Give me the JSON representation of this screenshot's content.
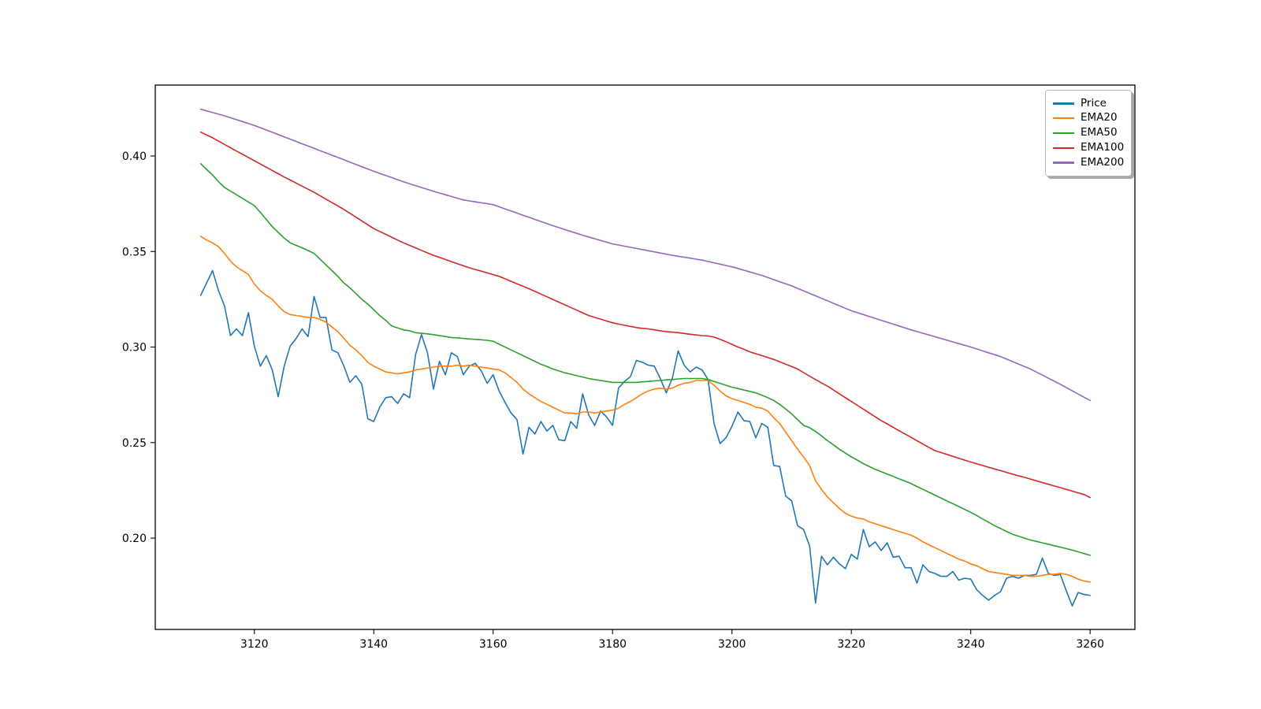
{
  "figure": {
    "background": "#ffffff"
  },
  "chart_data": {
    "type": "line",
    "title": "",
    "xlabel": "",
    "ylabel": "",
    "grid": false,
    "legend_position": "upper right",
    "xlim": [
      3103.4,
      3267.5
    ],
    "ylim": [
      0.1522,
      0.4371
    ],
    "xticks": {
      "values": [
        3120,
        3140,
        3160,
        3180,
        3200,
        3220,
        3240,
        3260
      ],
      "labels": [
        "3120",
        "3140",
        "3160",
        "3180",
        "3200",
        "3220",
        "3240",
        "3260"
      ]
    },
    "yticks": {
      "values": [
        0.2,
        0.25,
        0.3,
        0.35,
        0.4
      ],
      "labels": [
        "0.20",
        "0.25",
        "0.30",
        "0.35",
        "0.40"
      ]
    },
    "x": [
      3111,
      3112,
      3113,
      3114,
      3115,
      3116,
      3117,
      3118,
      3119,
      3120,
      3121,
      3122,
      3123,
      3124,
      3125,
      3126,
      3127,
      3128,
      3129,
      3130,
      3131,
      3132,
      3133,
      3134,
      3135,
      3136,
      3137,
      3138,
      3139,
      3140,
      3141,
      3142,
      3143,
      3144,
      3145,
      3146,
      3147,
      3148,
      3149,
      3150,
      3151,
      3152,
      3153,
      3154,
      3155,
      3156,
      3157,
      3158,
      3159,
      3160,
      3161,
      3162,
      3163,
      3164,
      3165,
      3166,
      3167,
      3168,
      3169,
      3170,
      3171,
      3172,
      3173,
      3174,
      3175,
      3176,
      3177,
      3178,
      3179,
      3180,
      3181,
      3182,
      3183,
      3184,
      3185,
      3186,
      3187,
      3188,
      3189,
      3190,
      3191,
      3192,
      3193,
      3194,
      3195,
      3196,
      3197,
      3198,
      3199,
      3200,
      3201,
      3202,
      3203,
      3204,
      3205,
      3206,
      3207,
      3208,
      3209,
      3210,
      3211,
      3212,
      3213,
      3214,
      3215,
      3216,
      3217,
      3218,
      3219,
      3220,
      3221,
      3222,
      3223,
      3224,
      3225,
      3226,
      3227,
      3228,
      3229,
      3230,
      3231,
      3232,
      3233,
      3234,
      3235,
      3236,
      3237,
      3238,
      3239,
      3240,
      3241,
      3242,
      3243,
      3244,
      3245,
      3246,
      3247,
      3248,
      3249,
      3250,
      3251,
      3252,
      3253,
      3254,
      3255,
      3256,
      3257,
      3258,
      3259,
      3260
    ],
    "series": [
      {
        "name": "Price",
        "color": "#1f77b4",
        "values": [
          0.327,
          0.3335,
          0.34,
          0.3295,
          0.3215,
          0.306,
          0.3095,
          0.306,
          0.318,
          0.3005,
          0.29,
          0.2955,
          0.288,
          0.274,
          0.29,
          0.3005,
          0.3045,
          0.3095,
          0.3055,
          0.3265,
          0.3155,
          0.3155,
          0.2985,
          0.297,
          0.29,
          0.2815,
          0.285,
          0.2805,
          0.2625,
          0.261,
          0.2685,
          0.2735,
          0.274,
          0.2705,
          0.2755,
          0.2735,
          0.296,
          0.3065,
          0.297,
          0.278,
          0.2925,
          0.2855,
          0.297,
          0.295,
          0.2855,
          0.29,
          0.2915,
          0.2875,
          0.281,
          0.2855,
          0.277,
          0.271,
          0.2655,
          0.262,
          0.244,
          0.258,
          0.2545,
          0.261,
          0.256,
          0.259,
          0.2515,
          0.251,
          0.261,
          0.2575,
          0.2755,
          0.2645,
          0.259,
          0.2665,
          0.2635,
          0.259,
          0.2785,
          0.282,
          0.2845,
          0.293,
          0.292,
          0.2905,
          0.29,
          0.2835,
          0.276,
          0.2835,
          0.298,
          0.2905,
          0.287,
          0.2895,
          0.288,
          0.283,
          0.26,
          0.2495,
          0.2525,
          0.2585,
          0.266,
          0.2615,
          0.261,
          0.2525,
          0.26,
          0.258,
          0.238,
          0.2375,
          0.222,
          0.2195,
          0.2065,
          0.2045,
          0.196,
          0.166,
          0.1905,
          0.186,
          0.19,
          0.1865,
          0.184,
          0.1915,
          0.189,
          0.2045,
          0.1955,
          0.198,
          0.1935,
          0.1975,
          0.19,
          0.1905,
          0.1845,
          0.1845,
          0.1765,
          0.186,
          0.1825,
          0.1815,
          0.18,
          0.18,
          0.1825,
          0.178,
          0.179,
          0.1785,
          0.173,
          0.17,
          0.1675,
          0.17,
          0.172,
          0.179,
          0.18,
          0.179,
          0.1805,
          0.1805,
          0.181,
          0.1895,
          0.1815,
          0.1805,
          0.181,
          0.1725,
          0.1645,
          0.1715,
          0.1705,
          0.17
        ]
      },
      {
        "name": "EMA20",
        "color": "#ff7f0e",
        "values": [
          0.358,
          0.356,
          0.3545,
          0.3525,
          0.349,
          0.345,
          0.342,
          0.34,
          0.338,
          0.333,
          0.3295,
          0.327,
          0.325,
          0.3215,
          0.3185,
          0.317,
          0.3165,
          0.316,
          0.3155,
          0.3155,
          0.3145,
          0.313,
          0.3105,
          0.308,
          0.3045,
          0.301,
          0.2985,
          0.2955,
          0.292,
          0.29,
          0.2885,
          0.287,
          0.2865,
          0.286,
          0.2865,
          0.287,
          0.288,
          0.2885,
          0.289,
          0.2895,
          0.29,
          0.29,
          0.29,
          0.2905,
          0.29,
          0.2905,
          0.29,
          0.2895,
          0.289,
          0.2885,
          0.288,
          0.2865,
          0.284,
          0.2815,
          0.278,
          0.2755,
          0.2735,
          0.2715,
          0.27,
          0.2685,
          0.267,
          0.2655,
          0.2655,
          0.265,
          0.266,
          0.266,
          0.2655,
          0.266,
          0.2665,
          0.267,
          0.268,
          0.27,
          0.2715,
          0.2735,
          0.2755,
          0.277,
          0.278,
          0.2785,
          0.278,
          0.2785,
          0.28,
          0.281,
          0.2815,
          0.2825,
          0.2825,
          0.2825,
          0.28,
          0.277,
          0.2745,
          0.273,
          0.272,
          0.271,
          0.27,
          0.2685,
          0.268,
          0.2665,
          0.263,
          0.26,
          0.2555,
          0.251,
          0.2465,
          0.2425,
          0.238,
          0.23,
          0.2255,
          0.2215,
          0.2185,
          0.2155,
          0.213,
          0.2115,
          0.2105,
          0.21,
          0.2085,
          0.2075,
          0.2065,
          0.2055,
          0.2045,
          0.2035,
          0.2025,
          0.2015,
          0.2,
          0.198,
          0.1965,
          0.195,
          0.1935,
          0.192,
          0.1905,
          0.189,
          0.188,
          0.1865,
          0.1855,
          0.184,
          0.1825,
          0.182,
          0.1815,
          0.181,
          0.1805,
          0.1805,
          0.1805,
          0.18,
          0.18,
          0.1805,
          0.181,
          0.181,
          0.1815,
          0.181,
          0.18,
          0.1785,
          0.1775,
          0.177
        ]
      },
      {
        "name": "EMA50",
        "color": "#2ca02c",
        "values": [
          0.396,
          0.393,
          0.39,
          0.3865,
          0.3835,
          0.3816,
          0.3797,
          0.3778,
          0.3759,
          0.374,
          0.3705,
          0.3668,
          0.363,
          0.36,
          0.357,
          0.3545,
          0.3532,
          0.3519,
          0.3505,
          0.349,
          0.346,
          0.343,
          0.34,
          0.337,
          0.3335,
          0.331,
          0.328,
          0.325,
          0.3225,
          0.3195,
          0.3165,
          0.314,
          0.311,
          0.31,
          0.309,
          0.3085,
          0.3075,
          0.3072,
          0.3069,
          0.3065,
          0.306,
          0.3055,
          0.305,
          0.3048,
          0.3045,
          0.3042,
          0.304,
          0.3038,
          0.3035,
          0.303,
          0.3015,
          0.3,
          0.2985,
          0.297,
          0.2955,
          0.294,
          0.2925,
          0.291,
          0.2898,
          0.2885,
          0.2875,
          0.2865,
          0.2858,
          0.285,
          0.2843,
          0.2835,
          0.283,
          0.2825,
          0.282,
          0.2815,
          0.2815,
          0.2815,
          0.2815,
          0.2815,
          0.2818,
          0.282,
          0.2823,
          0.2825,
          0.2828,
          0.283,
          0.2833,
          0.2835,
          0.2835,
          0.2835,
          0.2835,
          0.283,
          0.282,
          0.281,
          0.28,
          0.279,
          0.2783,
          0.2775,
          0.2768,
          0.276,
          0.2748,
          0.2735,
          0.272,
          0.27,
          0.2675,
          0.265,
          0.262,
          0.259,
          0.2578,
          0.2558,
          0.2535,
          0.251,
          0.2488,
          0.2465,
          0.2445,
          0.2425,
          0.2408,
          0.239,
          0.2375,
          0.236,
          0.2348,
          0.2335,
          0.2323,
          0.231,
          0.2298,
          0.2285,
          0.227,
          0.2255,
          0.224,
          0.2225,
          0.221,
          0.2195,
          0.218,
          0.2165,
          0.215,
          0.2135,
          0.2118,
          0.21,
          0.2083,
          0.2065,
          0.205,
          0.2035,
          0.202,
          0.201,
          0.2,
          0.199,
          0.1983,
          0.1975,
          0.1968,
          0.196,
          0.1953,
          0.1945,
          0.1937,
          0.1928,
          0.1919,
          0.191
        ]
      },
      {
        "name": "EMA100",
        "color": "#d62728",
        "values": [
          0.4125,
          0.411,
          0.4095,
          0.4078,
          0.406,
          0.4043,
          0.4026,
          0.4009,
          0.3992,
          0.3975,
          0.3958,
          0.3941,
          0.3924,
          0.3907,
          0.389,
          0.3874,
          0.3858,
          0.3842,
          0.3826,
          0.381,
          0.3792,
          0.3774,
          0.3756,
          0.3738,
          0.372,
          0.37,
          0.368,
          0.366,
          0.364,
          0.362,
          0.3605,
          0.359,
          0.3575,
          0.356,
          0.3545,
          0.3532,
          0.3519,
          0.3506,
          0.3493,
          0.348,
          0.3469,
          0.3458,
          0.3447,
          0.3436,
          0.3425,
          0.3415,
          0.3406,
          0.3397,
          0.3388,
          0.3379,
          0.337,
          0.3357,
          0.3344,
          0.3331,
          0.3318,
          0.3305,
          0.3291,
          0.3277,
          0.3263,
          0.3249,
          0.3235,
          0.3221,
          0.3207,
          0.3193,
          0.3179,
          0.3165,
          0.3155,
          0.3146,
          0.3136,
          0.3127,
          0.312,
          0.3114,
          0.3108,
          0.3102,
          0.3098,
          0.3095,
          0.309,
          0.3085,
          0.308,
          0.3078,
          0.3075,
          0.3071,
          0.3067,
          0.3063,
          0.306,
          0.3058,
          0.3052,
          0.304,
          0.3028,
          0.3014,
          0.3,
          0.2988,
          0.2975,
          0.2965,
          0.2955,
          0.2945,
          0.2935,
          0.2923,
          0.291,
          0.2898,
          0.2885,
          0.2866,
          0.2848,
          0.283,
          0.2812,
          0.2795,
          0.2775,
          0.2755,
          0.2735,
          0.2715,
          0.2695,
          0.2675,
          0.2655,
          0.2635,
          0.2615,
          0.2598,
          0.258,
          0.2562,
          0.2545,
          0.2527,
          0.251,
          0.2492,
          0.2475,
          0.2458,
          0.2448,
          0.2438,
          0.2428,
          0.2418,
          0.2408,
          0.2398,
          0.2389,
          0.238,
          0.2371,
          0.2362,
          0.2353,
          0.2344,
          0.2335,
          0.2326,
          0.2318,
          0.2309,
          0.23,
          0.2291,
          0.2282,
          0.2273,
          0.2264,
          0.2255,
          0.2246,
          0.2237,
          0.2228,
          0.2212
        ]
      },
      {
        "name": "EMA200",
        "color": "#9467bd",
        "values": [
          0.4245,
          0.4236,
          0.4227,
          0.4219,
          0.421,
          0.42,
          0.419,
          0.418,
          0.417,
          0.416,
          0.4148,
          0.4136,
          0.4124,
          0.4112,
          0.41,
          0.4088,
          0.4076,
          0.4064,
          0.4052,
          0.404,
          0.4028,
          0.4016,
          0.4004,
          0.3992,
          0.398,
          0.3968,
          0.3956,
          0.3944,
          0.3932,
          0.392,
          0.3909,
          0.3898,
          0.3887,
          0.3876,
          0.3865,
          0.3855,
          0.3845,
          0.3835,
          0.3825,
          0.3815,
          0.3806,
          0.3797,
          0.3788,
          0.3779,
          0.377,
          0.3765,
          0.376,
          0.3755,
          0.375,
          0.3745,
          0.3734,
          0.3723,
          0.3712,
          0.3701,
          0.369,
          0.3679,
          0.3668,
          0.3657,
          0.3646,
          0.3635,
          0.3625,
          0.3615,
          0.3605,
          0.3595,
          0.3585,
          0.3576,
          0.3567,
          0.3558,
          0.3549,
          0.354,
          0.3534,
          0.3528,
          0.3522,
          0.3516,
          0.351,
          0.3504,
          0.3498,
          0.3492,
          0.3486,
          0.348,
          0.3475,
          0.347,
          0.3465,
          0.346,
          0.3455,
          0.3448,
          0.3441,
          0.3434,
          0.3427,
          0.342,
          0.3411,
          0.3402,
          0.3393,
          0.3384,
          0.3375,
          0.3364,
          0.3353,
          0.3342,
          0.3331,
          0.332,
          0.3307,
          0.3294,
          0.3281,
          0.3268,
          0.3255,
          0.3242,
          0.3229,
          0.3216,
          0.3203,
          0.319,
          0.318,
          0.317,
          0.316,
          0.315,
          0.314,
          0.313,
          0.312,
          0.311,
          0.31,
          0.309,
          0.3081,
          0.3072,
          0.3063,
          0.3054,
          0.3045,
          0.3036,
          0.3027,
          0.3018,
          0.3009,
          0.3,
          0.299,
          0.298,
          0.297,
          0.296,
          0.295,
          0.2937,
          0.2924,
          0.2911,
          0.2898,
          0.2885,
          0.2869,
          0.2853,
          0.2837,
          0.2821,
          0.2805,
          0.2788,
          0.2771,
          0.2754,
          0.2737,
          0.272
        ]
      }
    ]
  },
  "legend": {
    "items": [
      {
        "label": "Price"
      },
      {
        "label": "EMA20"
      },
      {
        "label": "EMA50"
      },
      {
        "label": "EMA100"
      },
      {
        "label": "EMA200"
      }
    ]
  }
}
